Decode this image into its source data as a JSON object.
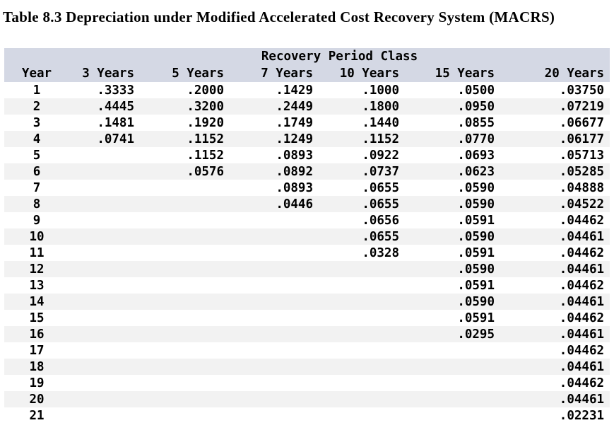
{
  "chart_data": {
    "type": "table",
    "title": "Table 8.3 Depreciation under Modified Accelerated Cost Recovery System (MACRS)",
    "group_header": "Recovery Period Class",
    "columns": [
      "Year",
      "3 Years",
      "5 Years",
      "7 Years",
      "10 Years",
      "15 Years",
      "20 Years"
    ],
    "rows": [
      [
        "1",
        ".3333",
        ".2000",
        ".1429",
        ".1000",
        ".0500",
        ".03750"
      ],
      [
        "2",
        ".4445",
        ".3200",
        ".2449",
        ".1800",
        ".0950",
        ".07219"
      ],
      [
        "3",
        ".1481",
        ".1920",
        ".1749",
        ".1440",
        ".0855",
        ".06677"
      ],
      [
        "4",
        ".0741",
        ".1152",
        ".1249",
        ".1152",
        ".0770",
        ".06177"
      ],
      [
        "5",
        "",
        ".1152",
        ".0893",
        ".0922",
        ".0693",
        ".05713"
      ],
      [
        "6",
        "",
        ".0576",
        ".0892",
        ".0737",
        ".0623",
        ".05285"
      ],
      [
        "7",
        "",
        "",
        ".0893",
        ".0655",
        ".0590",
        ".04888"
      ],
      [
        "8",
        "",
        "",
        ".0446",
        ".0655",
        ".0590",
        ".04522"
      ],
      [
        "9",
        "",
        "",
        "",
        ".0656",
        ".0591",
        ".04462"
      ],
      [
        "10",
        "",
        "",
        "",
        ".0655",
        ".0590",
        ".04461"
      ],
      [
        "11",
        "",
        "",
        "",
        ".0328",
        ".0591",
        ".04462"
      ],
      [
        "12",
        "",
        "",
        "",
        "",
        ".0590",
        ".04461"
      ],
      [
        "13",
        "",
        "",
        "",
        "",
        ".0591",
        ".04462"
      ],
      [
        "14",
        "",
        "",
        "",
        "",
        ".0590",
        ".04461"
      ],
      [
        "15",
        "",
        "",
        "",
        "",
        ".0591",
        ".04462"
      ],
      [
        "16",
        "",
        "",
        "",
        "",
        ".0295",
        ".04461"
      ],
      [
        "17",
        "",
        "",
        "",
        "",
        "",
        ".04462"
      ],
      [
        "18",
        "",
        "",
        "",
        "",
        "",
        ".04461"
      ],
      [
        "19",
        "",
        "",
        "",
        "",
        "",
        ".04462"
      ],
      [
        "20",
        "",
        "",
        "",
        "",
        "",
        ".04461"
      ],
      [
        "21",
        "",
        "",
        "",
        "",
        "",
        ".02231"
      ]
    ],
    "colors": {
      "header_band": "#d4d8e4",
      "row_stripe": "#f2f2f2",
      "text": "#000000",
      "background": "#ffffff"
    }
  }
}
